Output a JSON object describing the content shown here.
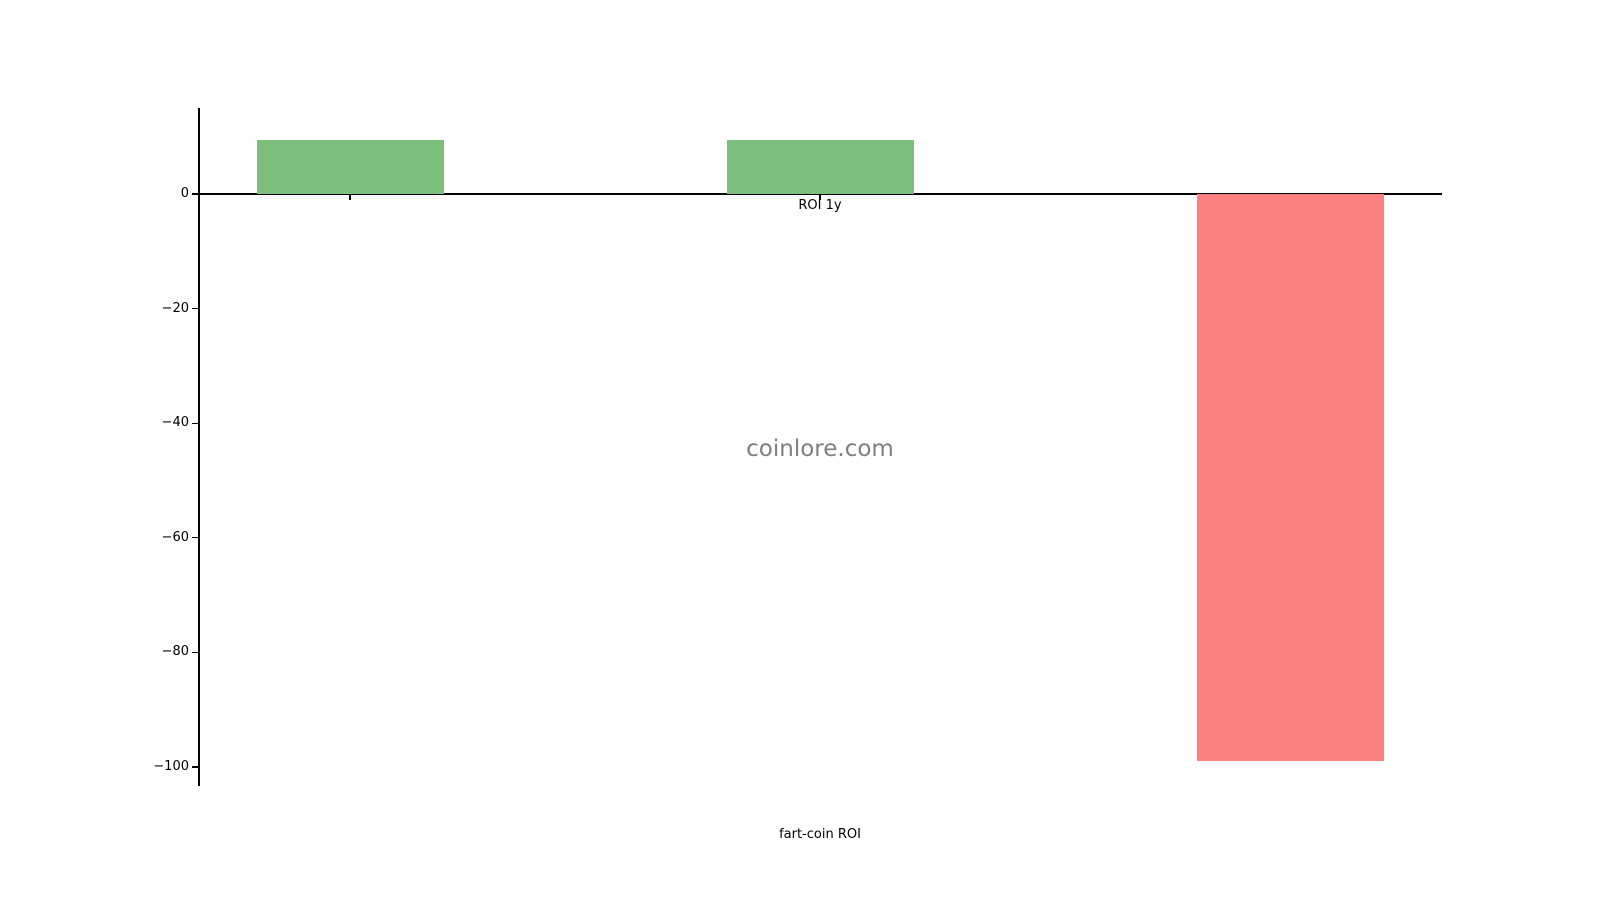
{
  "chart_data": {
    "type": "bar",
    "title": "",
    "xlabel": "fart-coin ROI",
    "ylabel": "",
    "watermark": "coinlore.com",
    "categories": [
      "",
      "ROI 1y",
      ""
    ],
    "values": [
      9.4,
      9.4,
      -99
    ],
    "bar_colors": [
      "#7cbe7c",
      "#7cbe7c",
      "#fc8080"
    ],
    "yticks": [
      0,
      -20,
      -40,
      -60,
      -80,
      -100
    ],
    "ytick_labels": [
      "0",
      "−20",
      "−40",
      "−60",
      "−80",
      "−100"
    ],
    "ylim": [
      -103.3,
      15.0
    ],
    "grid": false,
    "legend": null,
    "axis_color": "#000000",
    "text_color": "#000000",
    "watermark_color": "#7f7f7f",
    "background": "#ffffff"
  }
}
